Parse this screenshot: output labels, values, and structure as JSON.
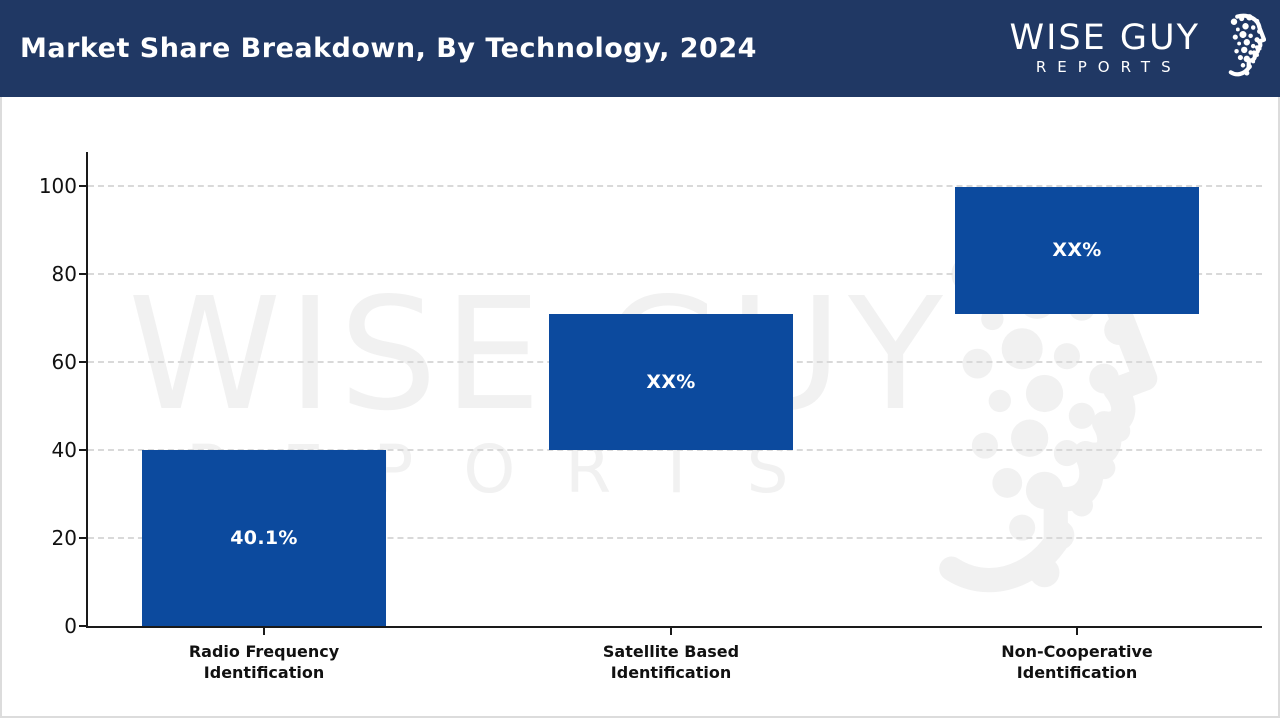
{
  "header": {
    "title": "Market Share Breakdown, By Technology, 2024",
    "brand": {
      "name": "WISE GUY",
      "sub": "REPORTS"
    }
  },
  "watermark": {
    "name": "WISE GUY",
    "sub": "REPORTS"
  },
  "colors": {
    "header_bg": "#203864",
    "bar": "#0c4a9e",
    "bar_label": "#ffffff",
    "watermark": "#f1f1f1",
    "gridline": "#d9d9d9",
    "axis": "#1a1a1a"
  },
  "chart_data": {
    "type": "bar",
    "subtype": "cumulative-segments-waterfall",
    "title": "Market Share Breakdown, By Technology, 2024",
    "categories": [
      {
        "line1": "Radio Frequency",
        "line2": "Identification"
      },
      {
        "line1": "Satellite Based",
        "line2": "Identification"
      },
      {
        "line1": "Non-Cooperative",
        "line2": "Identification"
      }
    ],
    "bars": [
      {
        "category": "Radio Frequency Identification",
        "base": 0,
        "top": 40.1,
        "label": "40.1%"
      },
      {
        "category": "Satellite Based Identification",
        "base": 40.1,
        "top": 71,
        "label": "XX%"
      },
      {
        "category": "Non-Cooperative Identification",
        "base": 71,
        "top": 99.7,
        "label": "XX%"
      }
    ],
    "xlabel": "",
    "ylabel": "",
    "ylim": [
      0,
      100
    ],
    "yticks": [
      0,
      20,
      40,
      60,
      80,
      100
    ],
    "grid": "horizontal-dashed",
    "legend": "none",
    "bar_value_labels_position": "center"
  }
}
